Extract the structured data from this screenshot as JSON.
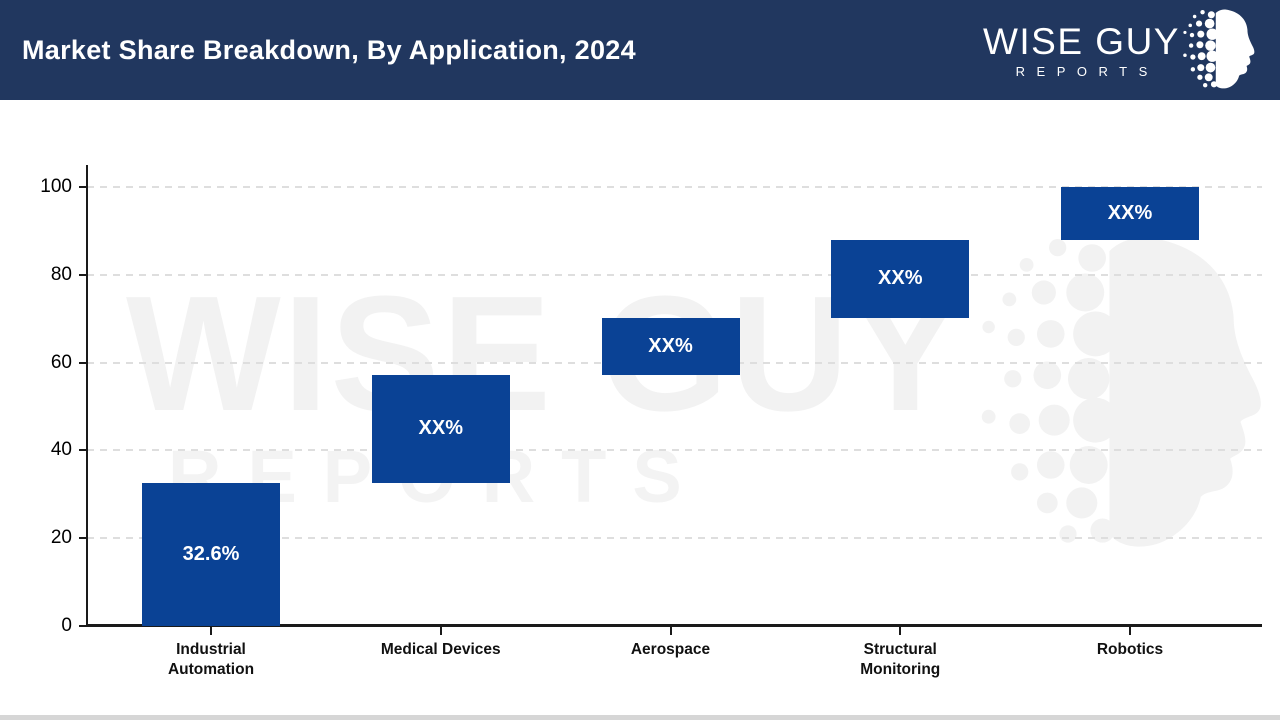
{
  "header": {
    "title": "Market Share Breakdown, By Application, 2024",
    "logo": {
      "line1": "WISE GUY",
      "line2": "REPORTS"
    }
  },
  "watermark": {
    "line1": "WISE GUY",
    "line2": "REPORTS"
  },
  "chart_data": {
    "type": "bar",
    "subtype": "waterfall",
    "title": "Market Share Breakdown, By Application, 2024",
    "categories": [
      "Industrial\nAutomation",
      "Medical Devices",
      "Aerospace",
      "Structural\nMonitoring",
      "Robotics"
    ],
    "segments": [
      {
        "category": "Industrial Automation",
        "start": 0,
        "end": 32.6,
        "label": "32.6%"
      },
      {
        "category": "Medical Devices",
        "start": 32.6,
        "end": 57.2,
        "label": "XX%"
      },
      {
        "category": "Aerospace",
        "start": 57.2,
        "end": 70.2,
        "label": "XX%"
      },
      {
        "category": "Structural Monitoring",
        "start": 70.2,
        "end": 87.9,
        "label": "XX%"
      },
      {
        "category": "Robotics",
        "start": 87.9,
        "end": 100,
        "label": "XX%"
      }
    ],
    "values": [
      32.6,
      24.6,
      13.0,
      17.7,
      12.1
    ],
    "xlabel": "",
    "ylabel": "",
    "ylim": [
      0,
      100
    ],
    "yticks": [
      0,
      20,
      40,
      60,
      80,
      100
    ],
    "grid": true,
    "legend": false,
    "colors": {
      "bar": "#0a4295",
      "bar_label": "#ffffff",
      "header_bg": "#21375f",
      "axis": "#1a1a1a",
      "gridline": "#dedede",
      "watermark": "#f2f2f2"
    }
  }
}
